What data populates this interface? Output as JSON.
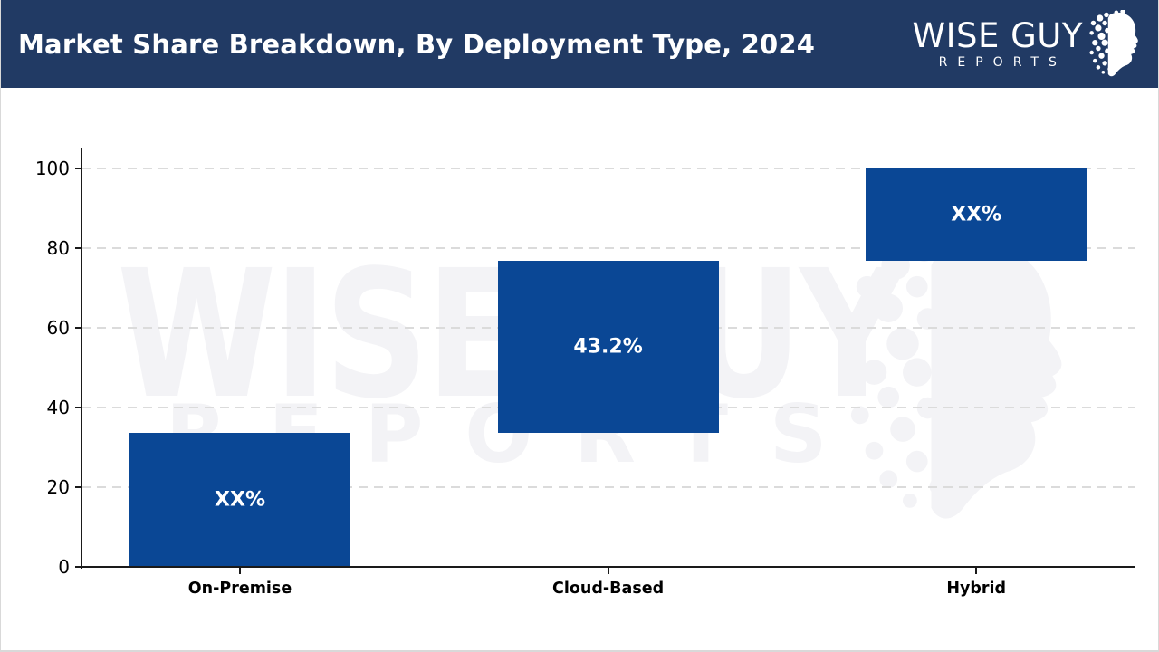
{
  "header": {
    "title": "Market Share Breakdown, By Deployment Type, 2024",
    "logo": {
      "line1": "WISE GUY",
      "line2": "REPORTS"
    }
  },
  "watermark": {
    "line1": "WISE GUY",
    "line2": "REPORTS"
  },
  "colors": {
    "header_bg": "#213A64",
    "bar": "#0A4795",
    "gridline": "#DBDBDB",
    "axis": "#1A1A1A",
    "bar_label": "#FFFFFF",
    "watermark": "#F3F3F6",
    "page_border": "#D9D9D9"
  },
  "chart_data": {
    "type": "bar",
    "subtype": "stacked-waterfall-segments",
    "title": "Market Share Breakdown, By Deployment Type, 2024",
    "categories": [
      "On-Premise",
      "Cloud-Based",
      "Hybrid"
    ],
    "series": [
      {
        "name": "Market Share (%)",
        "segments": [
          [
            0,
            33.6
          ],
          [
            33.6,
            76.8
          ],
          [
            76.8,
            100
          ]
        ],
        "heights": [
          33.6,
          43.2,
          23.2
        ],
        "labels": [
          "XX%",
          "43.2%",
          "XX%"
        ]
      }
    ],
    "xlabel": "",
    "ylabel": "",
    "yticks": [
      0,
      20,
      40,
      60,
      80,
      100
    ],
    "ylim": [
      0,
      105.2
    ],
    "grid": "horizontal-dashed",
    "legend_position": "none",
    "bar_color": "#0A4795"
  }
}
